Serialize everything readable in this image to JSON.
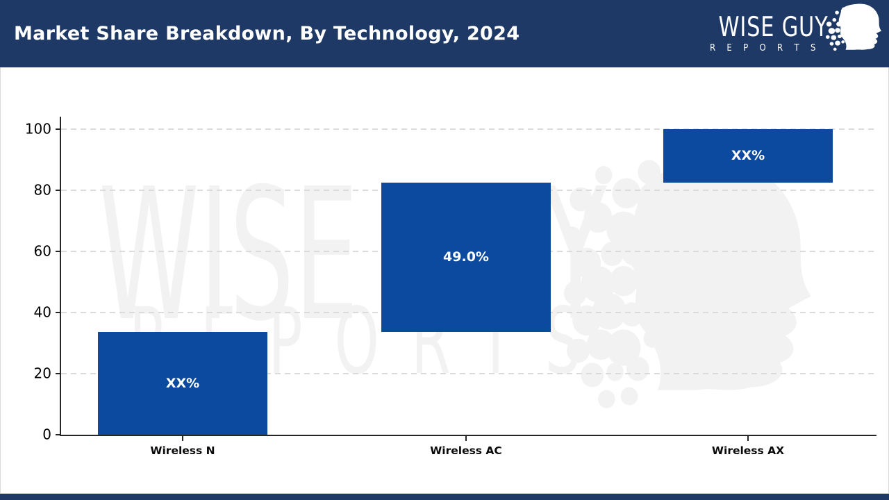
{
  "header": {
    "title": "Market Share Breakdown, By Technology, 2024",
    "logo": {
      "name": "WISE GUY",
      "tagline": "R E P O R T S"
    }
  },
  "watermark": {
    "line1": "WISE GUY",
    "line2": "REPORTS"
  },
  "colors": {
    "header_bg": "#1f3966",
    "footer_bg": "#1f3966",
    "bar": "#0c4aa0",
    "grid": "#dbdbdb",
    "axis": "#262626",
    "bar_label_text": "#ffffff",
    "watermark": "#f2f2f2"
  },
  "chart_data": {
    "type": "bar",
    "subtype": "waterfall",
    "title": "Market Share Breakdown, By Technology, 2024",
    "categories": [
      "Wireless N",
      "Wireless AC",
      "Wireless AX"
    ],
    "series": [
      {
        "name": "Market Share (%)",
        "segments": [
          {
            "category": "Wireless N",
            "start": 0,
            "end": 33.6,
            "value": 33.6,
            "label": "XX%"
          },
          {
            "category": "Wireless AC",
            "start": 33.6,
            "end": 82.6,
            "value": 49.0,
            "label": "49.0%"
          },
          {
            "category": "Wireless AX",
            "start": 82.6,
            "end": 100,
            "value": 17.4,
            "label": "XX%"
          }
        ]
      }
    ],
    "xlabel": "",
    "ylabel": "",
    "ylim": [
      0,
      100
    ],
    "yticks": [
      0,
      20,
      40,
      60,
      80,
      100
    ],
    "grid": "horizontal-dashed",
    "legend": "none"
  }
}
